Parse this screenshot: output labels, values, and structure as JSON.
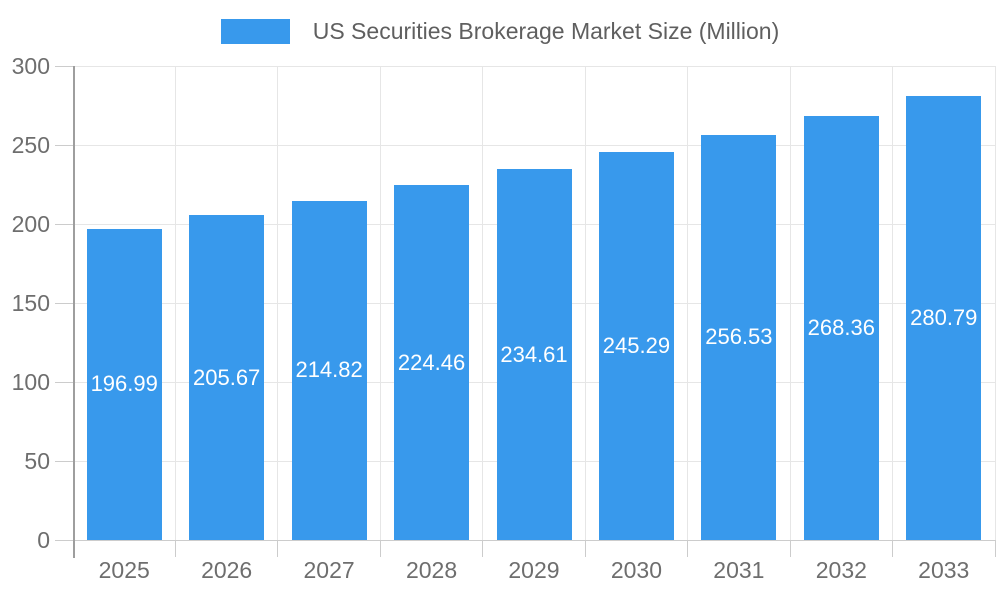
{
  "chart_data": {
    "type": "bar",
    "title": "US Securities Brokerage Market Size (Million)",
    "categories": [
      "2025",
      "2026",
      "2027",
      "2028",
      "2029",
      "2030",
      "2031",
      "2032",
      "2033"
    ],
    "values": [
      196.99,
      205.67,
      214.82,
      224.46,
      234.61,
      245.29,
      256.53,
      268.36,
      280.79
    ],
    "value_labels": [
      "196.99",
      "205.67",
      "214.82",
      "224.46",
      "234.61",
      "245.29",
      "256.53",
      "268.36",
      "280.79"
    ],
    "xlabel": "",
    "ylabel": "",
    "ylim": [
      0,
      300
    ],
    "yticks": [
      0,
      50,
      100,
      150,
      200,
      250,
      300
    ],
    "ytick_labels": [
      "0",
      "50",
      "100",
      "150",
      "200",
      "250",
      "300"
    ],
    "grid": true,
    "legend_position": "top-center",
    "bar_label_position": "inside-center",
    "colors": {
      "bar": "#3899EC",
      "bar_label": "#FFFFFF",
      "axis_text": "#6E6E6E",
      "legend_text": "#5F5F5F",
      "gridline": "#E6E6E6",
      "axis_line": "#9E9E9E",
      "tick": "#CCCCCC",
      "background": "#FFFFFF"
    }
  },
  "legend": {
    "label": "US Securities Brokerage Market Size (Million)"
  }
}
